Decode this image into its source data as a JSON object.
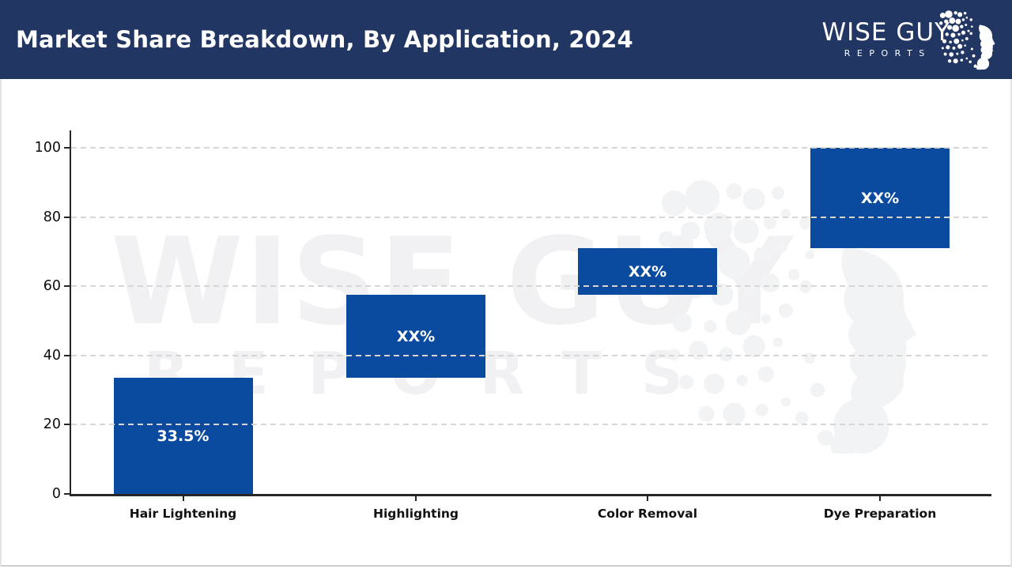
{
  "header": {
    "title": "Market Share Breakdown, By Application, 2024",
    "bg_color": "#223663",
    "logo": {
      "line1": "WISE GUY",
      "line2": "REPORTS"
    }
  },
  "watermark": {
    "line1": "WISE GUY",
    "line2": "REPORTS"
  },
  "chart_data": {
    "type": "bar",
    "subtype": "waterfall-range",
    "title": "Market Share Breakdown, By Application, 2024",
    "xlabel": "",
    "ylabel": "",
    "categories": [
      "Hair Lightening",
      "Highlighting",
      "Color Removal",
      "Dye Preparation"
    ],
    "segments": [
      {
        "category": "Hair Lightening",
        "start": 0,
        "end": 33.5,
        "label": "33.5%"
      },
      {
        "category": "Highlighting",
        "start": 33.5,
        "end": 57.5,
        "label": "XX%"
      },
      {
        "category": "Color Removal",
        "start": 57.5,
        "end": 71,
        "label": "XX%"
      },
      {
        "category": "Dye Preparation",
        "start": 71,
        "end": 100,
        "label": "XX%"
      }
    ],
    "y_ticks": [
      0,
      20,
      40,
      60,
      80,
      100
    ],
    "ylim": [
      0,
      100
    ],
    "grid": "horizontal-dashed",
    "legend": "none",
    "bar_color": "#0b4b9f",
    "bar_label_color": "#ffffff",
    "grid_color": "#d6d6d6",
    "axis_color": "#262626"
  }
}
